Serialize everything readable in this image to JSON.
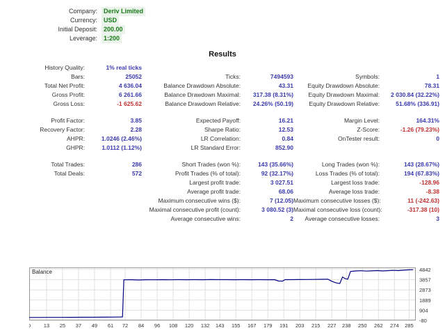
{
  "header": {
    "rows": [
      {
        "label": "Company:",
        "value": "Deriv Limited"
      },
      {
        "label": "Currency:",
        "value": "USD"
      },
      {
        "label": "Initial Deposit:",
        "value": "200.00"
      },
      {
        "label": "Leverage:",
        "value": "1:200"
      }
    ]
  },
  "results_title": "Results",
  "stats": {
    "groups": [
      {
        "rows": [
          [
            "History Quality:",
            "1% real ticks",
            "",
            "",
            "",
            ""
          ],
          [
            "Bars:",
            "25052",
            "Ticks:",
            "7494593",
            "Symbols:",
            "1"
          ],
          [
            "Total Net Profit:",
            "4 636.04",
            "Balance Drawdown Absolute:",
            "43.31",
            "Equity Drawdown Absolute:",
            "78.31"
          ],
          [
            "Gross Profit:",
            "6 261.66",
            "Balance Drawdown Maximal:",
            "317.38 (8.31%)",
            "Equity Drawdown Maximal:",
            "2 030.84 (32.22%)"
          ],
          [
            "Gross Loss:",
            "-1 625.62",
            "Balance Drawdown Relative:",
            "24.26% (50.19)",
            "Equity Drawdown Relative:",
            "51.68% (336.91)"
          ]
        ]
      },
      {
        "rows": [
          [
            "Profit Factor:",
            "3.85",
            "Expected Payoff:",
            "16.21",
            "Margin Level:",
            "164.31%"
          ],
          [
            "Recovery Factor:",
            "2.28",
            "Sharpe Ratio:",
            "12.53",
            "Z-Score:",
            "-1.26 (79.23%)"
          ],
          [
            "AHPR:",
            "1.0246 (2.46%)",
            "LR Correlation:",
            "0.84",
            "OnTester result:",
            "0"
          ],
          [
            "GHPR:",
            "1.0112 (1.12%)",
            "LR Standard Error:",
            "852.90",
            "",
            ""
          ]
        ]
      },
      {
        "rows": [
          [
            "Total Trades:",
            "286",
            "Short Trades (won %):",
            "143 (35.66%)",
            "Long Trades (won %):",
            "143 (28.67%)"
          ],
          [
            "Total Deals:",
            "572",
            "Profit Trades (% of total):",
            "92 (32.17%)",
            "Loss Trades (% of total):",
            "194 (67.83%)"
          ],
          [
            "",
            "",
            "Largest profit trade:",
            "3 027.51",
            "Largest loss trade:",
            "-128.96"
          ],
          [
            "",
            "",
            "Average profit trade:",
            "68.06",
            "Average loss trade:",
            "-8.38"
          ],
          [
            "",
            "",
            "Maximum consecutive wins ($):",
            "7 (12.05)",
            "Maximum consecutive losses ($):",
            "11 (-242.63)"
          ],
          [
            "",
            "",
            "Maximal consecutive profit (count):",
            "3 080.52 (3)",
            "Maximal consecutive loss (count):",
            "-317.38 (10)"
          ],
          [
            "",
            "",
            "Average consecutive wins:",
            "2",
            "Average consecutive losses:",
            "3"
          ]
        ]
      }
    ]
  },
  "colors": {
    "value_text": "#3a3aae",
    "negative_text": "#c03030",
    "header_value_text": "#1a7a1a",
    "chart_line": "#000080",
    "grid_line": "#e0e0e0",
    "chart_border": "#999999"
  },
  "chart_data": {
    "type": "line",
    "title": "Balance",
    "legend_label": "Balance",
    "xlim": [
      0,
      290
    ],
    "ylim": [
      -80,
      5040
    ],
    "x_ticks": [
      0,
      13,
      25,
      37,
      49,
      61,
      72,
      84,
      96,
      108,
      120,
      132,
      143,
      155,
      167,
      179,
      191,
      203,
      215,
      227,
      238,
      250,
      262,
      274,
      285
    ],
    "y_ticks": [
      4842,
      3857,
      2873,
      1889,
      904,
      -80
    ],
    "series": [
      {
        "name": "Balance",
        "color": "#000080",
        "points": [
          [
            0,
            200
          ],
          [
            8,
            204
          ],
          [
            16,
            208
          ],
          [
            24,
            212
          ],
          [
            32,
            216
          ],
          [
            40,
            221
          ],
          [
            48,
            226
          ],
          [
            56,
            231
          ],
          [
            62,
            236
          ],
          [
            66,
            242
          ],
          [
            69,
            250
          ],
          [
            70,
            262
          ],
          [
            71,
            3845
          ],
          [
            76,
            3852
          ],
          [
            82,
            3826
          ],
          [
            88,
            3856
          ],
          [
            94,
            3848
          ],
          [
            100,
            3858
          ],
          [
            106,
            3850
          ],
          [
            112,
            3862
          ],
          [
            118,
            3854
          ],
          [
            124,
            3864
          ],
          [
            130,
            3856
          ],
          [
            136,
            3866
          ],
          [
            142,
            3858
          ],
          [
            148,
            3864
          ],
          [
            154,
            3852
          ],
          [
            160,
            3862
          ],
          [
            166,
            3856
          ],
          [
            172,
            3862
          ],
          [
            178,
            3854
          ],
          [
            184,
            3860
          ],
          [
            187,
            3724
          ],
          [
            190,
            3718
          ],
          [
            192,
            3858
          ],
          [
            197,
            3864
          ],
          [
            202,
            3870
          ],
          [
            208,
            3876
          ],
          [
            214,
            3884
          ],
          [
            220,
            3896
          ],
          [
            224,
            3908
          ],
          [
            227,
            3706
          ],
          [
            230,
            3548
          ],
          [
            233,
            3486
          ],
          [
            235,
            4118
          ],
          [
            237,
            3952
          ],
          [
            239,
            3906
          ],
          [
            241,
            4652
          ],
          [
            245,
            4706
          ],
          [
            249,
            4722
          ],
          [
            253,
            4688
          ],
          [
            257,
            4712
          ],
          [
            261,
            4736
          ],
          [
            265,
            4700
          ],
          [
            269,
            4728
          ],
          [
            273,
            4756
          ],
          [
            277,
            4736
          ],
          [
            281,
            4780
          ],
          [
            284,
            4806
          ],
          [
            288,
            4822
          ]
        ]
      }
    ]
  }
}
